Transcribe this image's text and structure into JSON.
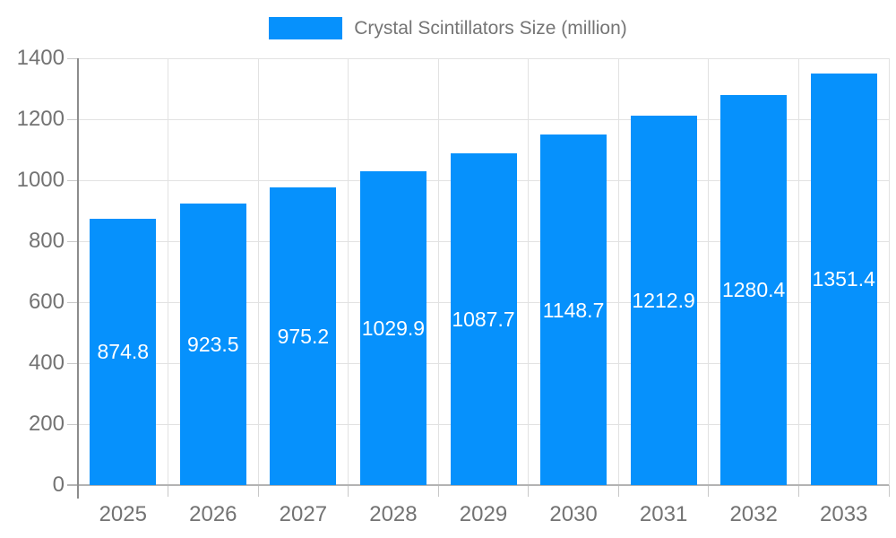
{
  "legend": {
    "label": "Crystal Scintillators Size (million)"
  },
  "chart_data": {
    "type": "bar",
    "title": "Crystal Scintillators Size (million)",
    "categories": [
      "2025",
      "2026",
      "2027",
      "2028",
      "2029",
      "2030",
      "2031",
      "2032",
      "2033"
    ],
    "values": [
      874.8,
      923.5,
      975.2,
      1029.9,
      1087.7,
      1148.7,
      1212.9,
      1280.4,
      1351.4
    ],
    "value_labels": [
      "874.8",
      "923.5",
      "975.2",
      "1029.9",
      "1087.7",
      "1148.7",
      "1212.9",
      "1280.4",
      "1351.4"
    ],
    "xlabel": "",
    "ylabel": "",
    "ylim": [
      0,
      1400
    ],
    "yticks": [
      0,
      200,
      400,
      600,
      800,
      1000,
      1200,
      1400
    ],
    "grid": true,
    "legend_position": "top-center",
    "bar_label_position": "inside-middle",
    "colors": {
      "bar": "#0691fc",
      "bar_label": "#ffffff",
      "grid_line": "#e2e2e2",
      "y_axis_line": "#8c8c8c",
      "x_axis_line": "#b3b3b3",
      "axis_tick": "#c8c8c8",
      "tick_label": "#737373",
      "legend_text": "#757575",
      "background": "#ffffff"
    }
  }
}
